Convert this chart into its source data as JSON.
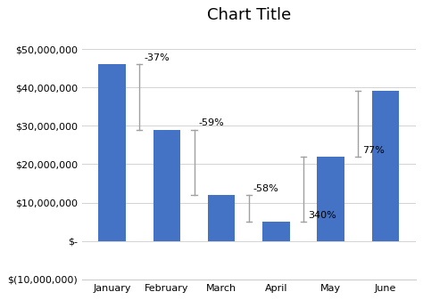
{
  "title": "Chart Title",
  "categories": [
    "January",
    "February",
    "March",
    "April",
    "May",
    "June"
  ],
  "values": [
    46000000,
    29000000,
    12000000,
    5000000,
    22000000,
    39000000
  ],
  "bar_color": "#4472C4",
  "background_color": "#FFFFFF",
  "plot_bg_color": "#FFFFFF",
  "ylim": [
    -10000000,
    55000000
  ],
  "yticks": [
    -10000000,
    0,
    10000000,
    20000000,
    30000000,
    40000000,
    50000000
  ],
  "ytick_labels": [
    "$(10,000,000)",
    "$-",
    "$10,000,000",
    "$20,000,000",
    "$30,000,000",
    "$40,000,000",
    "$50,000,000"
  ],
  "error_lines": [
    {
      "from_idx": 0,
      "to_idx": 1,
      "label": "-37%"
    },
    {
      "from_idx": 1,
      "to_idx": 2,
      "label": "-59%"
    },
    {
      "from_idx": 2,
      "to_idx": 3,
      "label": "-58%"
    },
    {
      "from_idx": 3,
      "to_idx": 4,
      "label": "340%"
    },
    {
      "from_idx": 4,
      "to_idx": 5,
      "label": "77%"
    }
  ],
  "grid_color": "#D3D3D3",
  "title_fontsize": 13,
  "tick_fontsize": 8,
  "bar_width": 0.5,
  "line_color": "#A0A0A0",
  "label_fontsize": 8
}
